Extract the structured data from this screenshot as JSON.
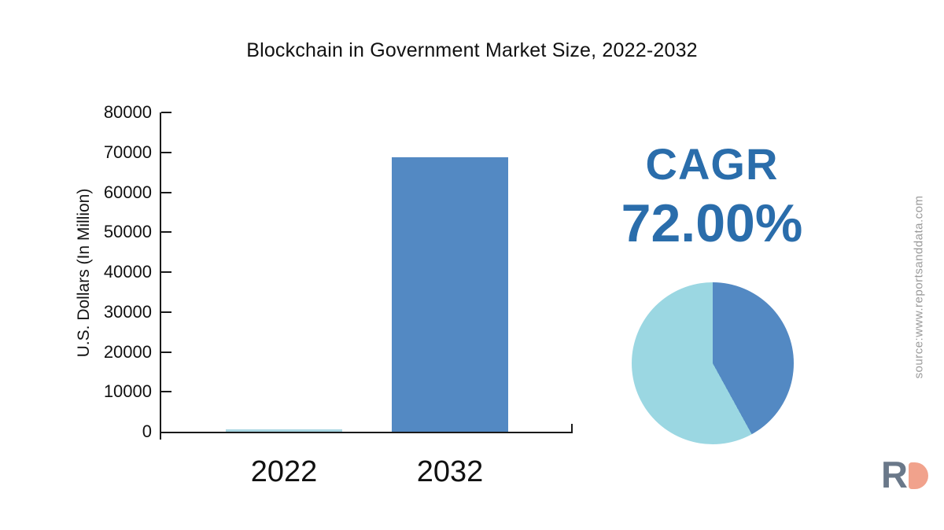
{
  "title": "Blockchain in Government Market Size, 2022-2032",
  "source_note": "source:www.reportsanddata.com",
  "logo": {
    "letter_r": "R",
    "letter_d": "D"
  },
  "cagr": {
    "label": "CAGR",
    "value": "72.00%",
    "color": "#2a6dab"
  },
  "colors": {
    "bar_2022": "#a9d6e2",
    "bar_2032": "#5389c3",
    "pie_dark": "#5389c3",
    "pie_light": "#9bd7e2",
    "axis": "#1a1a1a",
    "source_text": "#9a9a9a",
    "logo_r": "#6a7889",
    "logo_d": "#f1a28c"
  },
  "chart_data": [
    {
      "type": "bar",
      "title": "Blockchain in Government Market Size, 2022-2032",
      "categories": [
        "2022",
        "2032"
      ],
      "values": [
        500,
        68800
      ],
      "xlabel": "",
      "ylabel": "U.S. Dollars (In Million)",
      "ylim": [
        0,
        80000
      ],
      "yticks": [
        0,
        10000,
        20000,
        30000,
        40000,
        50000,
        60000,
        70000,
        80000
      ],
      "bar_colors": [
        "#a9d6e2",
        "#5389c3"
      ],
      "grid": false,
      "legend": "none",
      "annotation": "CAGR 72.00%"
    },
    {
      "type": "pie",
      "slices": [
        {
          "name": "dark-blue-segment",
          "value": 42,
          "color": "#5389c3"
        },
        {
          "name": "light-blue-segment",
          "value": 58,
          "color": "#9bd7e2"
        }
      ],
      "start_angle_deg": 0,
      "direction": "clockwise",
      "labels_shown": false
    }
  ]
}
